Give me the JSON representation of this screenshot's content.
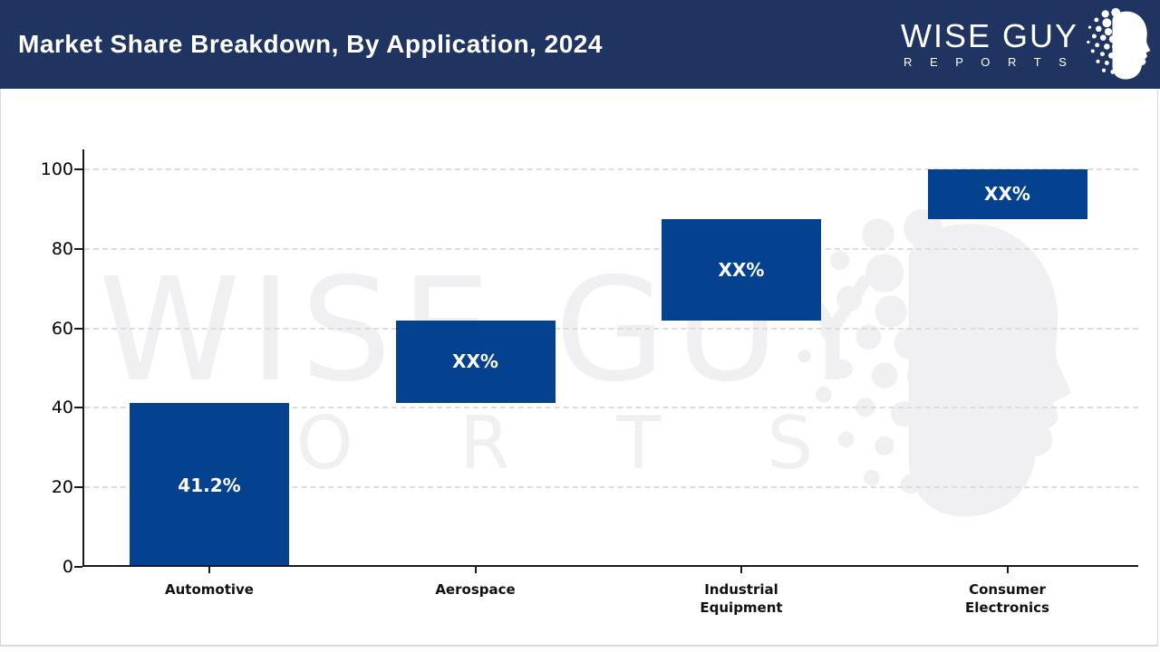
{
  "header": {
    "title": "Market Share Breakdown, By Application, 2024",
    "logo_line1": "WISE GUY",
    "logo_line2": "R E P O R T S",
    "bg_color": "#1f3461"
  },
  "watermark": {
    "line1": "WISE GUY",
    "line2": "P O R T S"
  },
  "chart_data": {
    "type": "bar",
    "subtype": "waterfall",
    "title": "Market Share Breakdown, By Application, 2024",
    "categories": [
      "Automotive",
      "Aerospace",
      "Industrial\nEquipment",
      "Consumer\nElectronics"
    ],
    "segments": [
      {
        "category": "Automotive",
        "start": 0,
        "end": 41.2,
        "label": "41.2%"
      },
      {
        "category": "Aerospace",
        "start": 41.2,
        "end": 62,
        "label": "XX%"
      },
      {
        "category": "Industrial Equipment",
        "start": 62,
        "end": 87.5,
        "label": "XX%"
      },
      {
        "category": "Consumer Electronics",
        "start": 87.5,
        "end": 100,
        "label": "XX%"
      }
    ],
    "yticks": [
      0,
      20,
      40,
      60,
      80,
      100
    ],
    "ylim": [
      0,
      100
    ],
    "bar_color": "#04418f",
    "bar_label_color": "#ffffff",
    "grid": {
      "horizontal": true,
      "style": "dashed",
      "color": "#dcdcdc"
    },
    "legend": null
  }
}
